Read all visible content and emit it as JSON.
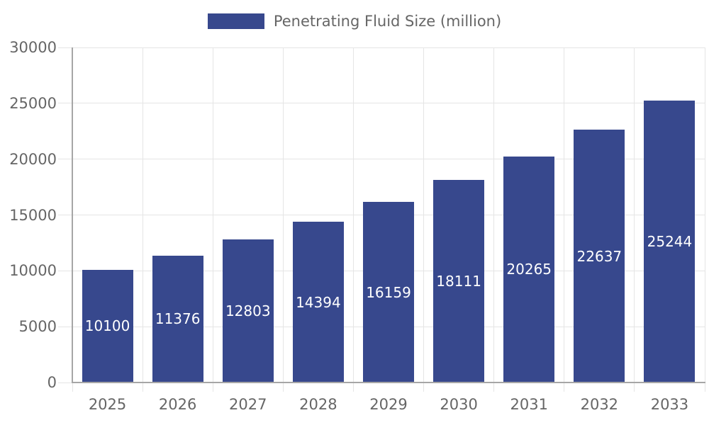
{
  "page": {
    "background": "#FFFFFF"
  },
  "legend": {
    "position": "top",
    "items": [
      {
        "label": "Penetrating Fluid Size (million)",
        "color": "#37488D"
      }
    ]
  },
  "chart_data": {
    "type": "bar",
    "title": "Penetrating Fluid Size (million)",
    "categories": [
      "2025",
      "2026",
      "2027",
      "2028",
      "2029",
      "2030",
      "2031",
      "2032",
      "2033"
    ],
    "series": [
      {
        "name": "Penetrating Fluid Size (million)",
        "values": [
          10100,
          11376,
          12803,
          14394,
          16159,
          18111,
          20265,
          22637,
          25244
        ]
      }
    ],
    "xlabel": "",
    "ylabel": "",
    "ylim": [
      0,
      30000
    ],
    "y_ticks": [
      0,
      5000,
      10000,
      15000,
      20000,
      25000,
      30000
    ],
    "grid": true,
    "value_labels": "inside-center",
    "legend_position": "top",
    "bar_color": "#37488D",
    "value_label_color": "#FFFFFF",
    "axis_label_color": "#666666",
    "gridline_color": "#E5E5E5",
    "axis_line_color": "#A6A6A6"
  }
}
